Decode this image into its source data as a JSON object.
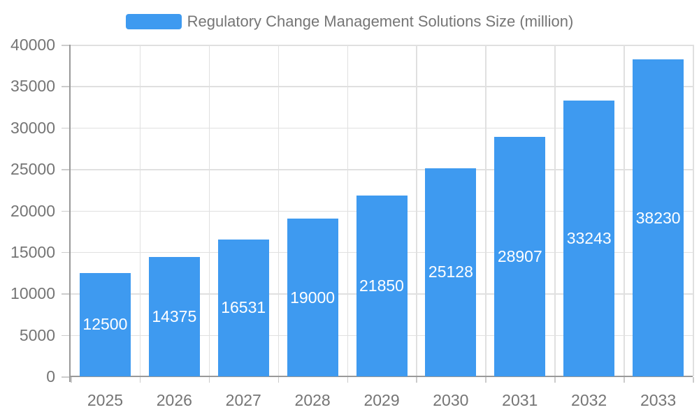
{
  "chart_data": {
    "type": "bar",
    "title": "Regulatory Change Management Solutions Size (million)",
    "legend": [
      "Regulatory Change Management Solutions Size (million)"
    ],
    "legend_position": "top-center",
    "categories": [
      "2025",
      "2026",
      "2027",
      "2028",
      "2029",
      "2030",
      "2031",
      "2032",
      "2033"
    ],
    "values": [
      12500,
      14375,
      16531,
      19000,
      21850,
      25128,
      28907,
      33243,
      38230
    ],
    "xlabel": "",
    "ylabel": "",
    "ylim": [
      0,
      40000
    ],
    "yticks": [
      0,
      5000,
      10000,
      15000,
      20000,
      25000,
      30000,
      35000,
      40000
    ],
    "grid": true,
    "value_labels": "inside-center",
    "colors": {
      "bar": "#3E9AF0",
      "value_label": "#FFFFFF",
      "axis_text": "#757575",
      "grid_line": "#E0E0E0",
      "axis_line": "#999999",
      "tick_line": "#CCCCCC",
      "background": "#FFFFFF"
    }
  }
}
